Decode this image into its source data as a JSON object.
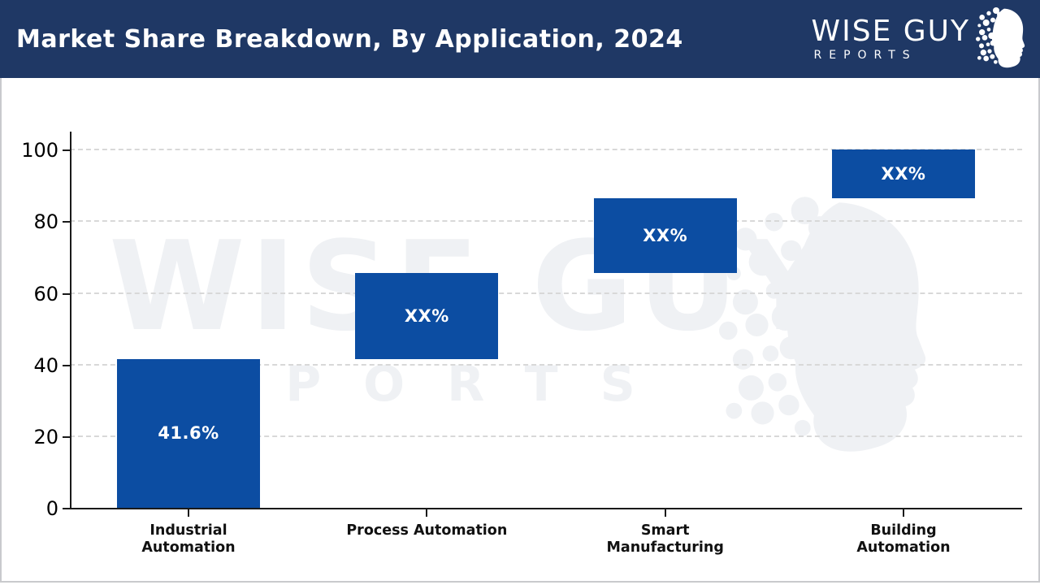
{
  "header": {
    "title": "Market Share Breakdown, By Application, 2024",
    "logo": {
      "line1": "WISE GUY",
      "line2": "REPORTS"
    },
    "bg_color": "#1F3865"
  },
  "watermark": {
    "line1": "WISE GUY",
    "line2": "REPORTS"
  },
  "chart_data": {
    "type": "bar",
    "subtype": "waterfall",
    "title": "Market Share Breakdown, By Application, 2024",
    "categories": [
      "Industrial Automation",
      "Process Automation",
      "Smart Manufacturing",
      "Building Automation"
    ],
    "category_lines": [
      [
        "Industrial",
        "Automation"
      ],
      [
        "Process Automation"
      ],
      [
        "Smart",
        "Manufacturing"
      ],
      [
        "Building",
        "Automation"
      ]
    ],
    "series": [
      {
        "name": "Market Share %",
        "segments": [
          {
            "start": 0,
            "end": 41.6,
            "label": "41.6%"
          },
          {
            "start": 41.6,
            "end": 65.6,
            "label": "XX%"
          },
          {
            "start": 65.6,
            "end": 86.5,
            "label": "XX%"
          },
          {
            "start": 86.5,
            "end": 100,
            "label": "XX%"
          }
        ]
      }
    ],
    "segment_heights": [
      41.6,
      24.0,
      20.9,
      13.5
    ],
    "ylim": [
      0,
      100
    ],
    "yticks": [
      0,
      20,
      40,
      60,
      80,
      100
    ],
    "grid": "horizontal-dashed",
    "legend": "none",
    "bar_color": "#0C4DA2",
    "bar_label_color": "#ffffff",
    "xlabel": "",
    "ylabel": ""
  }
}
